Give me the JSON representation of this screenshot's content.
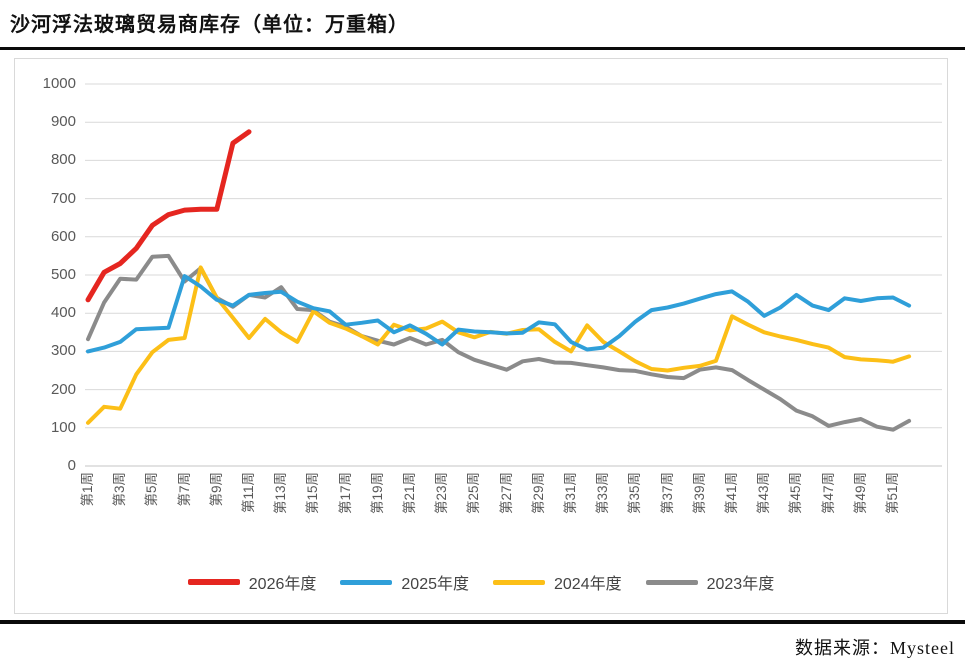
{
  "title": "沙河浮法玻璃贸易商库存（单位：万重箱）",
  "source": "数据来源：Mysteel",
  "colors": {
    "red_2026": "#e52620",
    "blue_2025": "#2f9fd9",
    "yellow_2024": "#fcbf17",
    "gray_2023": "#8b8b8b",
    "grid": "#d9d9d9",
    "axis_text": "#595959",
    "rule": "#0a0a0a"
  },
  "chart_data": {
    "type": "line",
    "title": "沙河浮法玻璃贸易商库存（单位：万重箱）",
    "xlabel": "",
    "ylabel": "",
    "ylim": [
      0,
      1000
    ],
    "y_ticks": [
      0,
      100,
      200,
      300,
      400,
      500,
      600,
      700,
      800,
      900,
      1000
    ],
    "x_weeks": 52,
    "x_tick_step": 2,
    "x_tick_labels": [
      "第1周",
      "第3周",
      "第5周",
      "第7周",
      "第9周",
      "第11周",
      "第13周",
      "第15周",
      "第17周",
      "第19周",
      "第21周",
      "第23周",
      "第25周",
      "第27周",
      "第29周",
      "第31周",
      "第33周",
      "第35周",
      "第37周",
      "第39周",
      "第41周",
      "第43周",
      "第45周",
      "第47周",
      "第49周",
      "第51周"
    ],
    "grid": true,
    "legend_position": "bottom",
    "series": [
      {
        "name": "2026年度",
        "color": "#e52620",
        "stroke_width": 5,
        "values": [
          435,
          507,
          530,
          570,
          630,
          658,
          670,
          672,
          672,
          845,
          875
        ]
      },
      {
        "name": "2025年度",
        "color": "#2f9fd9",
        "stroke_width": 4,
        "values": [
          300,
          310,
          325,
          358,
          360,
          362,
          497,
          470,
          435,
          420,
          448,
          453,
          456,
          430,
          413,
          405,
          370,
          375,
          381,
          350,
          368,
          346,
          318,
          357,
          352,
          350,
          347,
          349,
          376,
          371,
          325,
          305,
          310,
          340,
          378,
          408,
          415,
          425,
          438,
          450,
          457,
          430,
          393,
          415,
          448,
          420,
          408,
          439,
          432,
          439,
          441,
          420
        ]
      },
      {
        "name": "2024年度",
        "color": "#fcbf17",
        "stroke_width": 4,
        "values": [
          113,
          155,
          150,
          240,
          298,
          330,
          335,
          520,
          440,
          388,
          335,
          385,
          350,
          325,
          405,
          375,
          360,
          340,
          318,
          370,
          355,
          360,
          378,
          350,
          337,
          351,
          346,
          356,
          358,
          325,
          300,
          368,
          325,
          300,
          274,
          254,
          250,
          257,
          262,
          275,
          392,
          370,
          350,
          339,
          330,
          319,
          310,
          285,
          279,
          277,
          273,
          287
        ]
      },
      {
        "name": "2023年度",
        "color": "#8b8b8b",
        "stroke_width": 4,
        "values": [
          332,
          428,
          490,
          488,
          548,
          550,
          483,
          518,
          440,
          417,
          448,
          441,
          468,
          411,
          408,
          378,
          365,
          340,
          328,
          318,
          335,
          318,
          330,
          298,
          278,
          265,
          252,
          274,
          280,
          271,
          270,
          264,
          258,
          251,
          249,
          240,
          233,
          230,
          252,
          258,
          251,
          225,
          200,
          175,
          145,
          130,
          105,
          115,
          123,
          103,
          95,
          118
        ]
      }
    ]
  }
}
